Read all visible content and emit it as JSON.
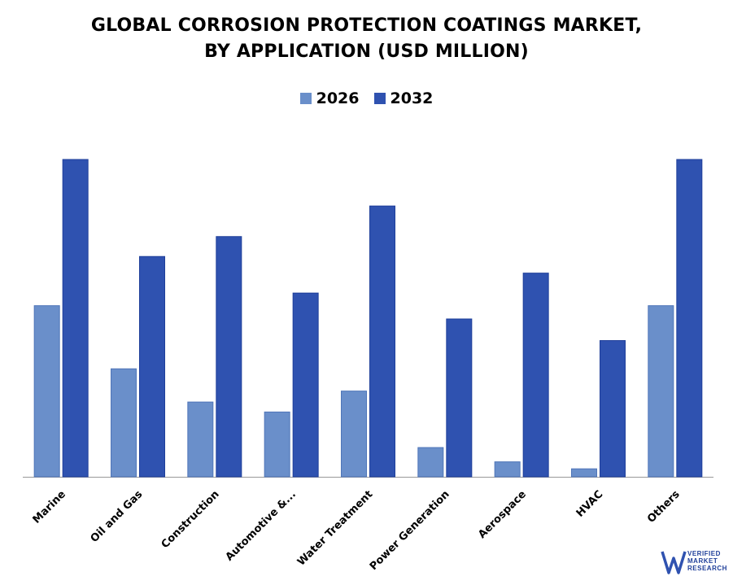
{
  "title_line1": "GLOBAL CORROSION PROTECTION COATINGS MARKET,",
  "title_line2": "BY APPLICATION (USD MILLION)",
  "colors": {
    "s2026": "#6a8fca",
    "s2032": "#2f52b0",
    "axis": "#999999"
  },
  "chart_data": {
    "type": "bar",
    "title": "GLOBAL CORROSION PROTECTION COATINGS MARKET, BY APPLICATION (USD MILLION)",
    "categories": [
      "Marine",
      "Oil and Gas",
      "Construction",
      "Automotive &...",
      "Water Treatment",
      "Power Generation",
      "Aerospace",
      "HVAC",
      "Others"
    ],
    "series": [
      {
        "name": "2026",
        "values": [
          51.5,
          32.5,
          22.5,
          19.5,
          25.8,
          8.8,
          4.5,
          2.4,
          51.5
        ]
      },
      {
        "name": "2032",
        "values": [
          95.5,
          66.3,
          72.3,
          55.3,
          81.5,
          47.5,
          61.3,
          41.0,
          95.5
        ]
      }
    ],
    "ylim": [
      0,
      100
    ],
    "xlabel": "",
    "ylabel": "",
    "legend": "top-center",
    "grid": false
  },
  "logo": {
    "line1": "VERIFIED",
    "line2": "MARKET",
    "line3": "RESEARCH",
    "mark": "VM"
  }
}
